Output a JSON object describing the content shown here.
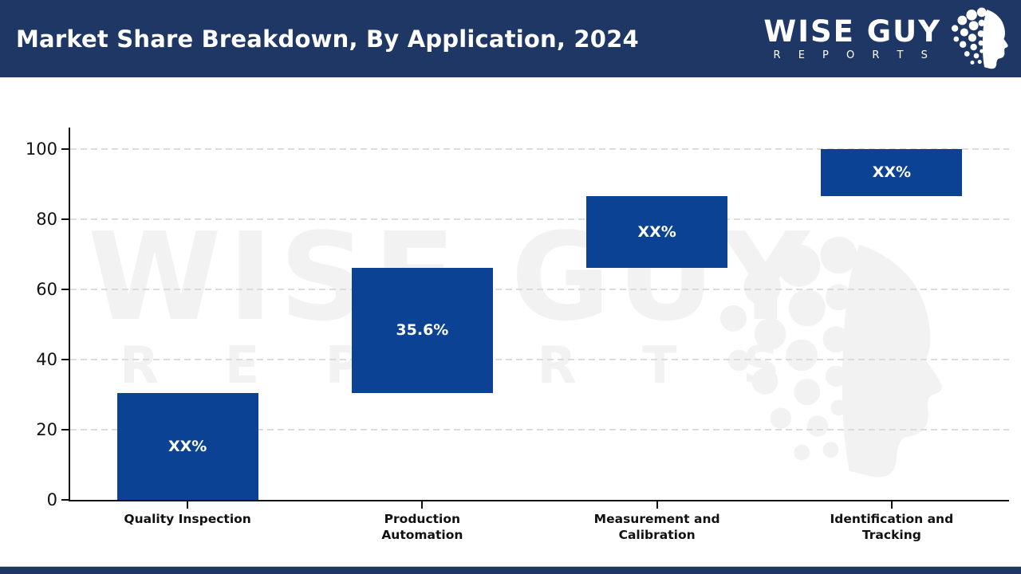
{
  "header": {
    "logo": {
      "wordmark": "WISE GUY",
      "subtext": "R E P O R T S"
    }
  },
  "watermark": {
    "line1": "WISE GUY",
    "line2": "R E P O R T S"
  },
  "chart_data": {
    "type": "bar",
    "variant": "floating-waterfall",
    "title": "Market Share Breakdown, By Application, 2024",
    "categories": [
      "Quality Inspection",
      "Production Automation",
      "Measurement and Calibration",
      "Identification and Tracking"
    ],
    "bars": [
      {
        "category_display": "Quality Inspection",
        "start": 0,
        "end": 30.5,
        "value_label": "XX%"
      },
      {
        "category_display": "Production\nAutomation",
        "start": 30.5,
        "end": 66.1,
        "value_label": "35.6%"
      },
      {
        "category_display": "Measurement and\nCalibration",
        "start": 66.1,
        "end": 86.6,
        "value_label": "XX%"
      },
      {
        "category_display": "Identification and\nTracking",
        "start": 86.6,
        "end": 100,
        "value_label": "XX%"
      }
    ],
    "revealed_value": "35.6%",
    "xlabel": "",
    "ylabel": "",
    "ylim": [
      0,
      100
    ],
    "yticks": [
      0,
      20,
      40,
      60,
      80,
      100
    ],
    "grid": "horizontal-dashed",
    "legend": "none",
    "colors": {
      "bar": "#0b4294",
      "value_label": "#ffffff",
      "axis": "#111111",
      "gridline": "#dcdcdc",
      "header_bg": "#1f3765",
      "watermark": "#f2f2f3"
    }
  }
}
